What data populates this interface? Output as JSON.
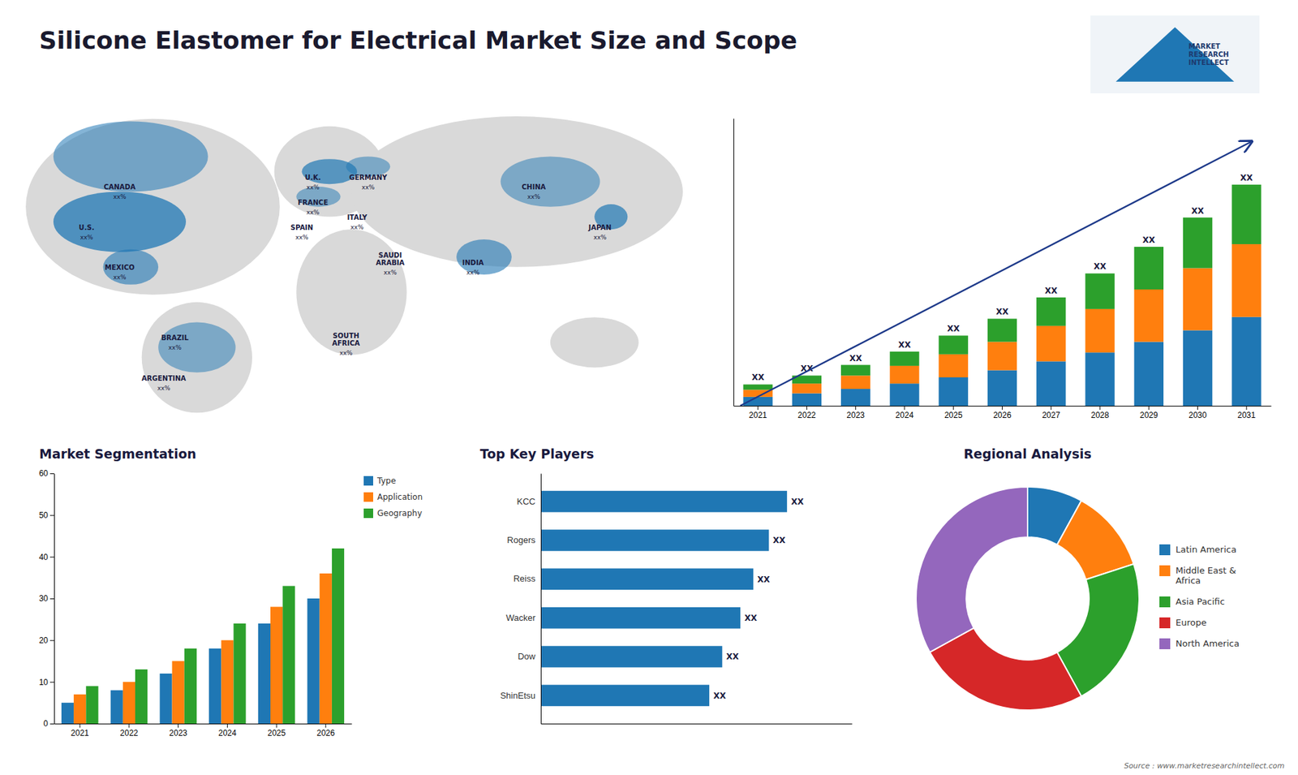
{
  "chart_data": [
    {
      "type": "map",
      "title": "Silicone Elastomer for Electrical Market Size and Scope",
      "annotations": [
        "CANADA",
        "xx%",
        "U.S.",
        "xx%",
        "MEXICO",
        "xx%",
        "BRAZIL",
        "xx%",
        "ARGENTINA",
        "xx%",
        "U.K.",
        "xx%",
        "FRANCE",
        "xx%",
        "SPAIN",
        "xx%",
        "GERMANY",
        "xx%",
        "ITALY",
        "xx%",
        "SAUDI\nARABIA",
        "xx%",
        "SOUTH\nAFRICA",
        "xx%",
        "CHINA",
        "xx%",
        "INDIA",
        "xx%",
        "JAPAN",
        "xx%",
        "MARKET\nRESEARCH\nINTELLECT",
        "Source : www.marketresearchintellect.com"
      ]
    },
    {
      "type": "bar",
      "stacked": true,
      "categories": [
        "2021",
        "2022",
        "2023",
        "2024",
        "2025",
        "2026",
        "2027",
        "2028",
        "2029",
        "2030",
        "2031"
      ],
      "series": [
        {
          "values": [
            1,
            1.4,
            1.9,
            2.5,
            3.2,
            4.0,
            5.0,
            6.0,
            7.2,
            8.5,
            10.0
          ]
        },
        {
          "values": [
            0.8,
            1.1,
            1.5,
            2.0,
            2.6,
            3.2,
            4.0,
            4.9,
            5.9,
            7.0,
            8.2
          ]
        },
        {
          "values": [
            0.6,
            0.9,
            1.2,
            1.6,
            2.1,
            2.6,
            3.2,
            4.0,
            4.8,
            5.7,
            6.7
          ],
          "value_labels": [
            "XX",
            "XX",
            "XX",
            "XX",
            "XX",
            "XX",
            "XX",
            "XX",
            "XX",
            "XX",
            "XX"
          ]
        }
      ],
      "ylim": [
        0,
        32.37
      ],
      "tick_labels": "x"
    },
    {
      "type": "bar",
      "title": "Market Segmentation",
      "categories": [
        "2021",
        "2022",
        "2023",
        "2024",
        "2025",
        "2026"
      ],
      "series": [
        {
          "name": "Type",
          "values": [
            5,
            8,
            12,
            18,
            24,
            30
          ]
        },
        {
          "name": "Application",
          "values": [
            7,
            10,
            15,
            20,
            28,
            36
          ]
        },
        {
          "name": "Geography",
          "values": [
            9,
            13,
            18,
            24,
            33,
            42
          ]
        }
      ],
      "ylim": [
        0,
        60
      ],
      "yticks": [
        0,
        10,
        20,
        30,
        40,
        50,
        60
      ],
      "legend": "right"
    },
    {
      "type": "bar",
      "orientation": "horizontal",
      "title": "Top Key Players",
      "categories": [
        "KCC",
        "Rogers",
        "Reiss",
        "Wacker",
        "Dow",
        "ShinEtsu"
      ],
      "values": [
        9.5,
        8.8,
        8.2,
        7.7,
        7.0,
        6.5
      ],
      "value_labels": [
        "XX",
        "XX",
        "XX",
        "XX",
        "XX",
        "XX"
      ],
      "xlim": [
        0,
        12
      ],
      "tick_labels": "y"
    },
    {
      "type": "donut",
      "title": "Regional Analysis",
      "categories": [
        "Latin America",
        "Middle East &\nAfrica",
        "Asia Pacific",
        "Europe",
        "North America"
      ],
      "values": [
        8,
        12,
        22,
        25,
        33
      ],
      "legend": "right"
    }
  ]
}
